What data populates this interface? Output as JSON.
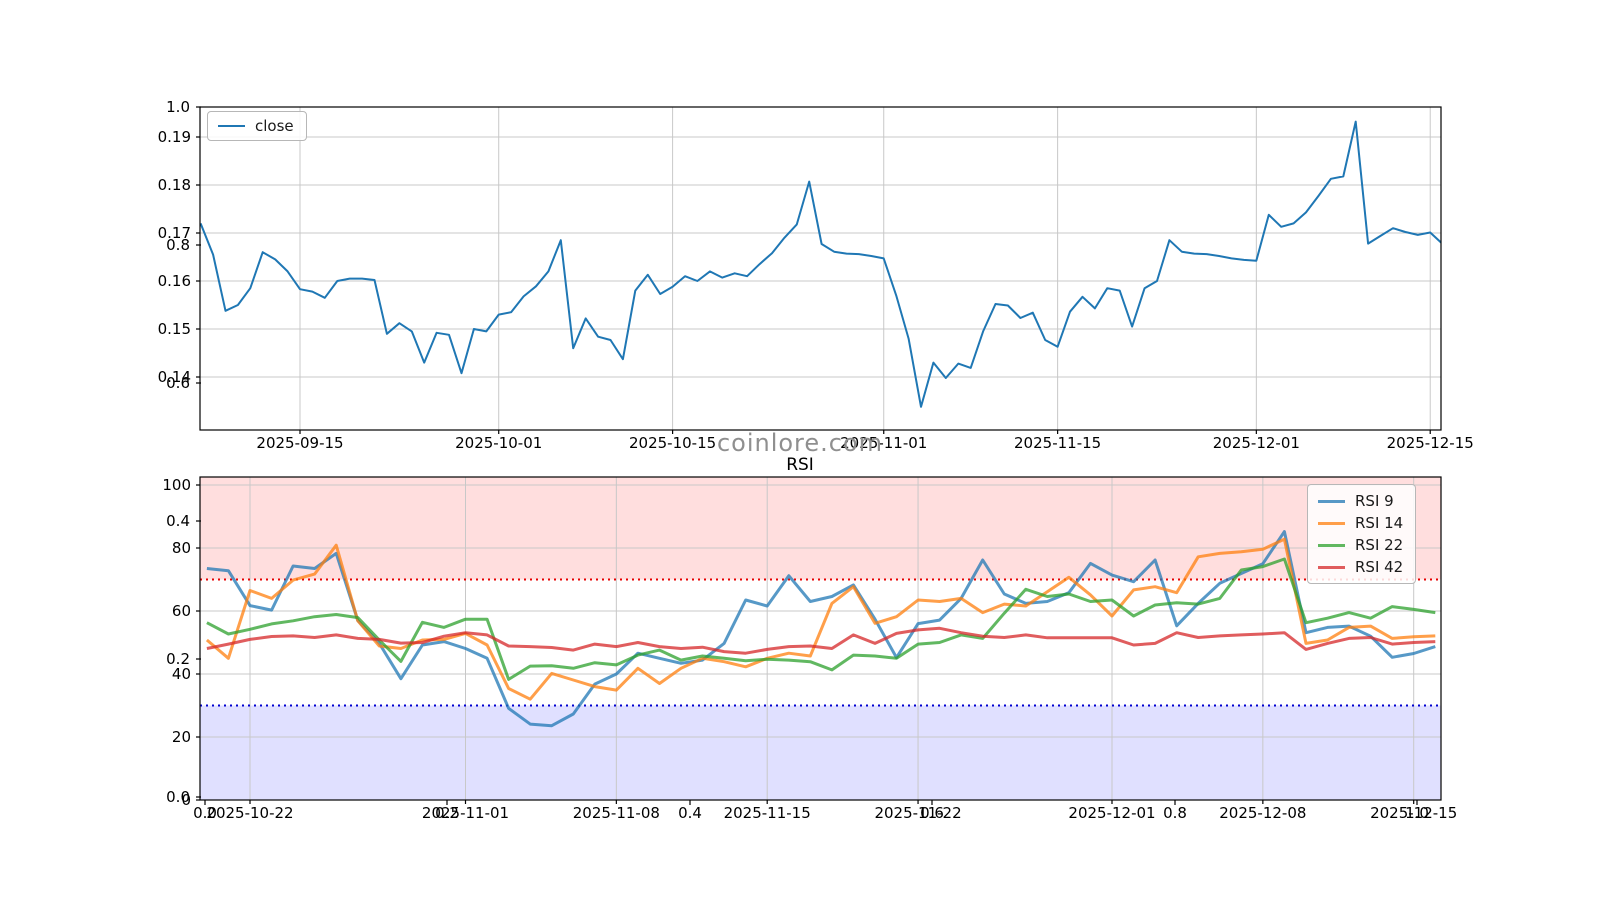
{
  "watermark": "coinlore.com",
  "colors": {
    "close": "#1f77b4",
    "rsi9": "#1f77b4",
    "rsi14": "#ff7f0e",
    "rsi22": "#2ca02c",
    "rsi42": "#d62728",
    "overbought_band": "rgba(255,0,0,0.13)",
    "oversold_band": "rgba(0,0,255,0.12)",
    "overbought_line": "#e60000",
    "oversold_line": "#0000d0",
    "grid": "#c8c8c8",
    "spine": "#000000",
    "tick_text": "#000000",
    "watermark_color": "#8f8f8f"
  },
  "overlay_axis": {
    "xticks": [
      "0.0",
      "0.2",
      "0.4",
      "0.6",
      "0.8",
      "1.0"
    ],
    "yticks": [
      "1.0",
      "0.8",
      "0.6",
      "0.4",
      "0.2",
      "0.0"
    ]
  },
  "chart_data": [
    {
      "type": "line",
      "title": "",
      "legend_position": "upper left",
      "grid": true,
      "x_start": "2025-09-07",
      "x_ticks": [
        "2025-09-15",
        "2025-10-01",
        "2025-10-15",
        "2025-11-01",
        "2025-11-15",
        "2025-12-01",
        "2025-12-15"
      ],
      "y_ticks": [
        {
          "v": 0.14,
          "label": "0.14"
        },
        {
          "v": 0.15,
          "label": "0.15"
        },
        {
          "v": 0.16,
          "label": "0.16"
        },
        {
          "v": 0.17,
          "label": "0.17"
        },
        {
          "v": 0.18,
          "label": "0.18"
        },
        {
          "v": 0.19,
          "label": "0.19"
        }
      ],
      "ylim": [
        0.129,
        0.19625
      ],
      "series": [
        {
          "name": "close",
          "color_key": "close",
          "opacity": 1,
          "width": 2,
          "values": [
            0.172,
            0.1655,
            0.1538,
            0.155,
            0.1585,
            0.166,
            0.1645,
            0.162,
            0.1583,
            0.1578,
            0.1565,
            0.16,
            0.1605,
            0.1605,
            0.1602,
            0.149,
            0.1512,
            0.1495,
            0.143,
            0.1492,
            0.1488,
            0.1408,
            0.15,
            0.1495,
            0.153,
            0.1535,
            0.1568,
            0.1589,
            0.162,
            0.1685,
            0.146,
            0.1522,
            0.1484,
            0.1477,
            0.1437,
            0.158,
            0.1613,
            0.1573,
            0.1588,
            0.161,
            0.16,
            0.162,
            0.1607,
            0.1616,
            0.161,
            0.1635,
            0.1658,
            0.169,
            0.1718,
            0.1807,
            0.1677,
            0.1661,
            0.1657,
            0.1656,
            0.1652,
            0.1647,
            0.157,
            0.148,
            0.1338,
            0.143,
            0.1398,
            0.1428,
            0.1419,
            0.1495,
            0.1552,
            0.1549,
            0.1523,
            0.1534,
            0.1477,
            0.1463,
            0.1536,
            0.1567,
            0.1543,
            0.1585,
            0.158,
            0.1505,
            0.1585,
            0.16,
            0.1685,
            0.1661,
            0.1657,
            0.1656,
            0.1652,
            0.1647,
            0.1644,
            0.1642,
            0.1738,
            0.1713,
            0.172,
            0.1743,
            0.1777,
            0.1813,
            0.1818,
            0.1932,
            0.1678,
            0.1694,
            0.171,
            0.1702,
            0.1696,
            0.1701,
            0.1677
          ]
        }
      ]
    },
    {
      "type": "line",
      "title": "RSI",
      "legend_position": "upper right",
      "grid": true,
      "x_start": "2025-10-20",
      "x_ticks": [
        "2025-10-22",
        "2025-11-01",
        "2025-11-08",
        "2025-11-15",
        "2025-11-22",
        "2025-12-01",
        "2025-12-08",
        "2025-12-15"
      ],
      "y_ticks": [
        {
          "v": 0,
          "label": "0"
        },
        {
          "v": 20,
          "label": "20"
        },
        {
          "v": 40,
          "label": "40"
        },
        {
          "v": 60,
          "label": "60"
        },
        {
          "v": 80,
          "label": "80"
        },
        {
          "v": 100,
          "label": "100"
        }
      ],
      "ylim": [
        0,
        102.5
      ],
      "bands": [
        {
          "from": 70,
          "to": 102.5,
          "color_key": "overbought_band"
        },
        {
          "from": 0,
          "to": 30,
          "color_key": "oversold_band"
        }
      ],
      "hlines": [
        {
          "value": 70,
          "style": "dotted",
          "color_key": "overbought_line"
        },
        {
          "value": 30,
          "style": "dotted",
          "color_key": "oversold_line"
        }
      ],
      "series": [
        {
          "name": "RSI 9",
          "color_key": "rsi9",
          "opacity": 0.75,
          "width": 3,
          "values": [
            73.5,
            72.8,
            61.7,
            60.3,
            74.3,
            73.5,
            78.3,
            57.0,
            49.7,
            38.5,
            49.2,
            50.3,
            48.1,
            45.0,
            29.1,
            24.1,
            23.6,
            27.3,
            36.8,
            40.0,
            46.6,
            45.0,
            43.4,
            44.4,
            49.7,
            63.5,
            61.6,
            71.2,
            63.0,
            64.6,
            68.3,
            57.4,
            45.2,
            56.0,
            57.1,
            64.0,
            76.2,
            65.4,
            62.4,
            63.0,
            65.8,
            75.1,
            71.4,
            69.3,
            76.2,
            55.3,
            62.4,
            68.8,
            71.9,
            75.0,
            85.2,
            53.1,
            54.8,
            55.2,
            52.0,
            45.3,
            46.5,
            48.7
          ]
        },
        {
          "name": "RSI 14",
          "color_key": "rsi14",
          "opacity": 0.75,
          "width": 3,
          "values": [
            50.8,
            45.0,
            66.5,
            64.0,
            69.8,
            71.7,
            80.9,
            56.9,
            48.9,
            48.1,
            50.8,
            51.0,
            52.9,
            49.2,
            35.4,
            32.0,
            40.2,
            38.1,
            36.0,
            34.9,
            41.8,
            37.0,
            41.8,
            45.0,
            43.9,
            42.3,
            45.0,
            46.6,
            45.7,
            62.4,
            67.7,
            56.1,
            58.2,
            63.5,
            63.0,
            64.0,
            59.5,
            62.2,
            61.6,
            66.1,
            70.7,
            65.1,
            58.4,
            66.7,
            67.7,
            65.8,
            77.2,
            78.3,
            78.8,
            79.6,
            82.8,
            49.7,
            50.8,
            54.8,
            55.2,
            51.3,
            51.8,
            52.1
          ]
        },
        {
          "name": "RSI 22",
          "color_key": "rsi22",
          "opacity": 0.75,
          "width": 3,
          "values": [
            56.3,
            52.7,
            54.2,
            55.9,
            56.9,
            58.2,
            58.9,
            57.9,
            50.8,
            44.0,
            56.4,
            54.8,
            57.4,
            57.4,
            38.3,
            42.5,
            42.6,
            41.8,
            43.6,
            42.9,
            46.0,
            47.6,
            44.4,
            45.7,
            45.0,
            44.2,
            44.7,
            44.4,
            43.9,
            41.3,
            46.0,
            45.7,
            45.0,
            49.5,
            50.0,
            52.4,
            51.3,
            59.3,
            66.9,
            64.6,
            65.4,
            63.0,
            63.5,
            58.4,
            61.9,
            62.6,
            62.2,
            64.0,
            73.0,
            74.1,
            76.5,
            56.3,
            57.7,
            59.5,
            57.7,
            61.4,
            60.5,
            59.5
          ]
        },
        {
          "name": "RSI 42",
          "color_key": "rsi42",
          "opacity": 0.75,
          "width": 3,
          "values": [
            48.1,
            49.5,
            51.0,
            51.9,
            52.1,
            51.6,
            52.4,
            51.3,
            51.0,
            49.8,
            50.0,
            52.0,
            53.1,
            52.4,
            48.9,
            48.7,
            48.4,
            47.6,
            49.5,
            48.7,
            50.0,
            48.7,
            48.1,
            48.5,
            47.1,
            46.6,
            47.8,
            48.7,
            48.9,
            48.1,
            52.4,
            49.7,
            52.9,
            54.0,
            54.5,
            53.1,
            52.0,
            51.6,
            52.4,
            51.5,
            51.5,
            51.5,
            51.5,
            49.2,
            49.7,
            53.1,
            51.6,
            52.1,
            52.4,
            52.7,
            53.1,
            47.8,
            49.7,
            51.3,
            51.6,
            49.5,
            50.0,
            50.3
          ]
        }
      ]
    }
  ]
}
